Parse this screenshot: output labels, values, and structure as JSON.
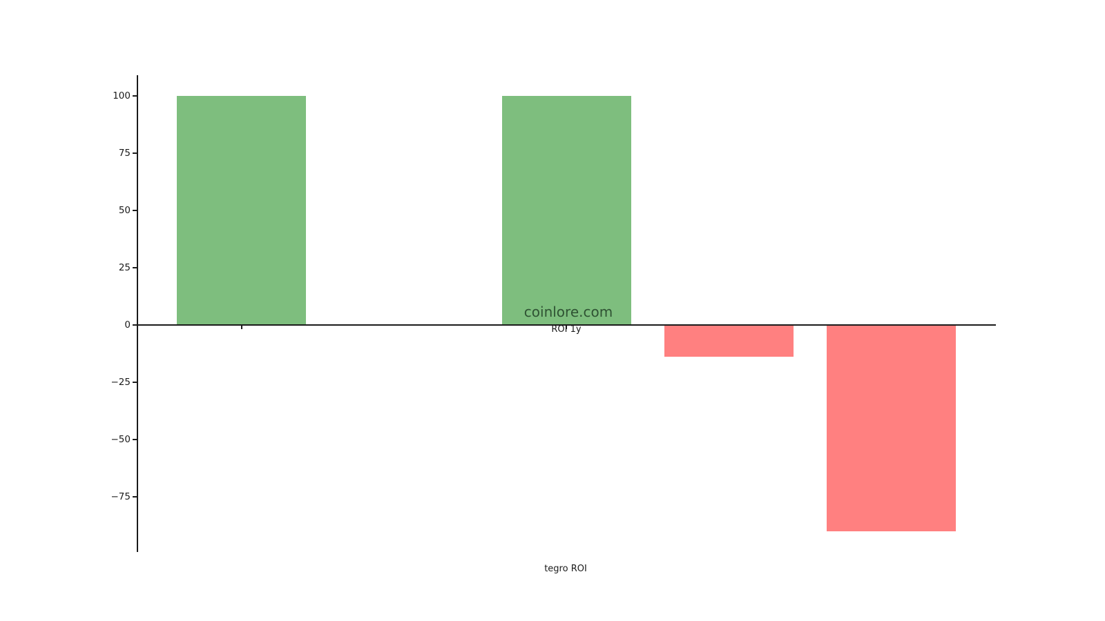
{
  "watermark": "coinlore.com",
  "colors": {
    "positive": "#7ebe7e",
    "negative": "#ff8080",
    "axis": "#1a1a1a",
    "text": "#1a1a1a",
    "watermark_text": "#2f5233"
  },
  "chart_data": {
    "type": "bar",
    "title": "",
    "xlabel": "tegro ROI",
    "ylabel": "",
    "categories": [
      "",
      "",
      "ROI 1y",
      "",
      ""
    ],
    "values": [
      100,
      0,
      100,
      -14,
      -90
    ],
    "positive_color": "#7ebe7e",
    "negative_color": "#ff8080",
    "yticks": [
      100,
      75,
      50,
      25,
      0,
      -25,
      -50,
      -75
    ],
    "ytick_labels": [
      "100",
      "75",
      "50",
      "25",
      "0",
      "−25",
      "−50",
      "−75"
    ],
    "xticks": [
      {
        "category_index": 0,
        "label": ""
      },
      {
        "category_index": 2,
        "label": "ROI 1y"
      }
    ],
    "ylim": [
      -99,
      109
    ],
    "grid": false,
    "legend": null
  }
}
